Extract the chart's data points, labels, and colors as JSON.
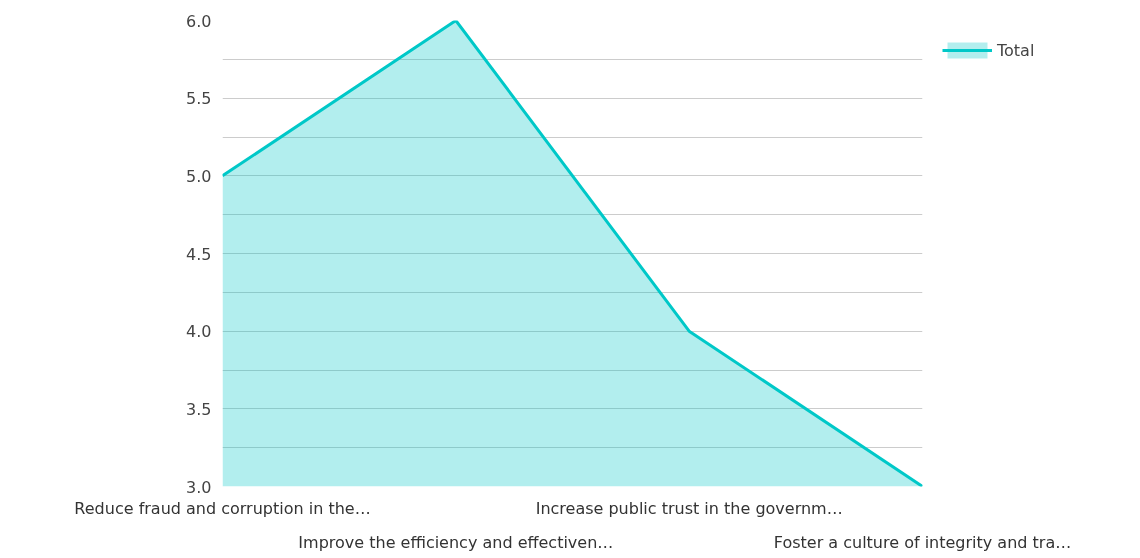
{
  "chart_data": {
    "type": "area",
    "categories": [
      "Reduce fraud and corruption in the…",
      "Improve the efficiency and effectiven…",
      "Increase public trust in the governm…",
      "Foster a culture of integrity and tra…"
    ],
    "series": [
      {
        "name": "Total",
        "color": "#00c8c8",
        "values": [
          5,
          6,
          4,
          3
        ]
      }
    ],
    "ylim": [
      3,
      6
    ],
    "yticks": [
      {
        "value": 3,
        "label": "3.0"
      },
      {
        "value": 3.25,
        "label": null
      },
      {
        "value": 3.5,
        "label": "3.5"
      },
      {
        "value": 3.75,
        "label": null
      },
      {
        "value": 4,
        "label": "4.0"
      },
      {
        "value": 4.25,
        "label": null
      },
      {
        "value": 4.5,
        "label": "4.5"
      },
      {
        "value": 4.75,
        "label": null
      },
      {
        "value": 5,
        "label": "5.0"
      },
      {
        "value": 5.25,
        "label": null
      },
      {
        "value": 5.5,
        "label": "5.5"
      },
      {
        "value": 5.75,
        "label": null
      },
      {
        "value": 6,
        "label": "6.0"
      }
    ],
    "grid": "y",
    "legend": "top right"
  }
}
